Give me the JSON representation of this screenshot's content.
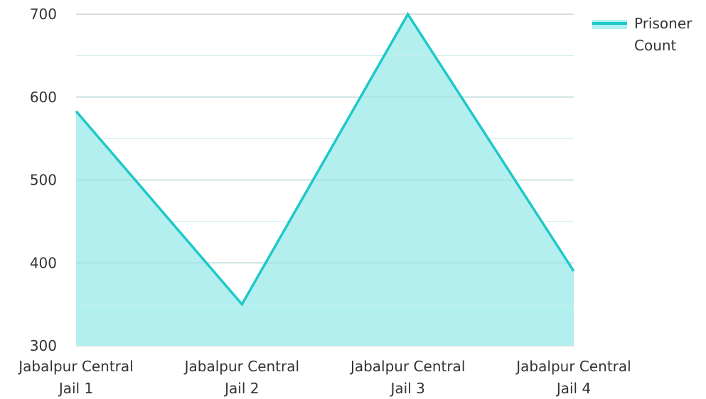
{
  "chart_data": {
    "type": "area",
    "title": "",
    "xlabel": "",
    "ylabel": "",
    "categories": [
      [
        "Jabalpur Central",
        "Jail 1"
      ],
      [
        "Jabalpur Central",
        "Jail 2"
      ],
      [
        "Jabalpur Central",
        "Jail 3"
      ],
      [
        "Jabalpur Central",
        "Jail 4"
      ]
    ],
    "series": [
      {
        "name": "Prisoner Count",
        "name_lines": [
          "Prisoner",
          "Count"
        ],
        "values": [
          583,
          350,
          700,
          390
        ],
        "line_color": "#1ec8c8",
        "fill_color": "#b2efee"
      }
    ],
    "ylim": [
      300,
      700
    ],
    "yticks": [
      "300",
      "400",
      "500",
      "600",
      "700"
    ],
    "grid": true,
    "legend_position": "top-right"
  }
}
